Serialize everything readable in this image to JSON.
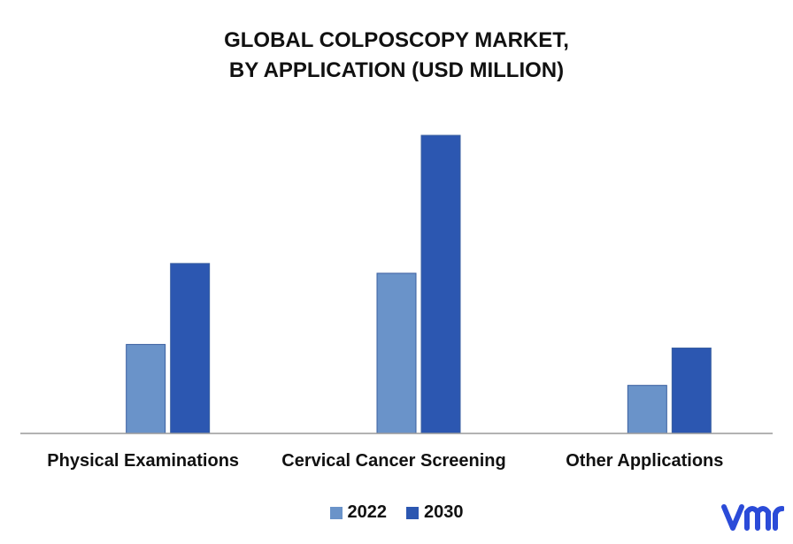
{
  "chart_data": {
    "type": "bar",
    "title_line1": "GLOBAL COLPOSCOPY MARKET,",
    "title_line2": "BY APPLICATION (USD MILLION)",
    "categories": [
      "Physical Examinations",
      "Cervical Cancer Screening",
      "Other Applications"
    ],
    "series": [
      {
        "name": "2022",
        "values": [
          100,
          180,
          54
        ],
        "color": "#6a93c9"
      },
      {
        "name": "2030",
        "values": [
          191,
          335,
          96
        ],
        "color": "#2c57b1"
      }
    ],
    "ylim": [
      0,
      350
    ],
    "grid": false,
    "legend": "bottom-center",
    "xlabel": "",
    "ylabel": ""
  },
  "logo": {
    "text": "vmr",
    "color": "#2b4bd8"
  }
}
